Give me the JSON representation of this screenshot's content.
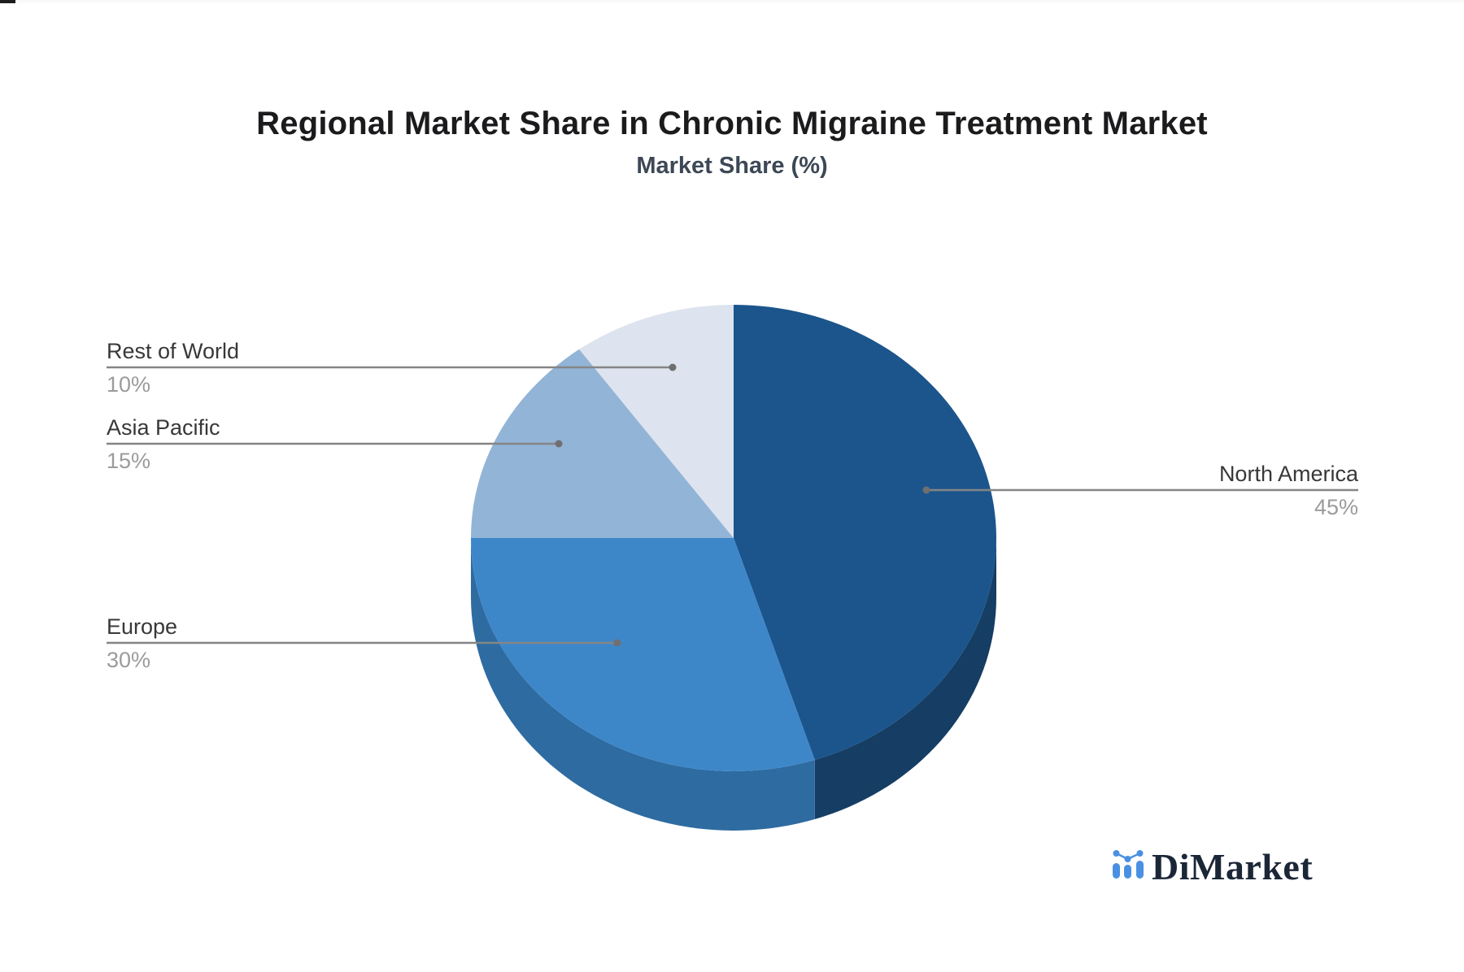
{
  "page": {
    "title": "Regional Market Share in Chronic Migraine Treatment Market",
    "subtitle": "Market Share (%)",
    "background_color": "#ffffff"
  },
  "chart_data": {
    "type": "pie",
    "style": "3d",
    "title": "Regional Market Share in Chronic Migraine Treatment Market",
    "subtitle": "Market Share (%)",
    "unit": "%",
    "start_angle_deg": 90,
    "direction": "clockwise",
    "legend_position": "callout-labels",
    "categories": [
      "North America",
      "Europe",
      "Asia Pacific",
      "Rest of World"
    ],
    "values": [
      45,
      30,
      15,
      10
    ],
    "slices": [
      {
        "label": "North America",
        "value": 45,
        "display": "45%",
        "color": "#1B558C",
        "side_color": "#163D63",
        "label_side": "right"
      },
      {
        "label": "Europe",
        "value": 30,
        "display": "30%",
        "color": "#3D87C9",
        "side_color": "#2E6BA1",
        "label_side": "left"
      },
      {
        "label": "Asia Pacific",
        "value": 15,
        "display": "15%",
        "color": "#92B4D6",
        "side_color": "#7EA3CB",
        "label_side": "left"
      },
      {
        "label": "Rest of World",
        "value": 10,
        "display": "10%",
        "color": "#DDE3EF",
        "side_color": "#C3CFE2",
        "label_side": "left"
      }
    ],
    "leader_line_color": "#858585",
    "leader_dot_color": "#6f6f6f",
    "label_text_color": "#383838",
    "value_text_color": "#9b9b9b"
  },
  "branding": {
    "logo_text": "DiMarket",
    "logo_text_color": "#1b2637",
    "logo_icon_color": "#4a90e2"
  }
}
